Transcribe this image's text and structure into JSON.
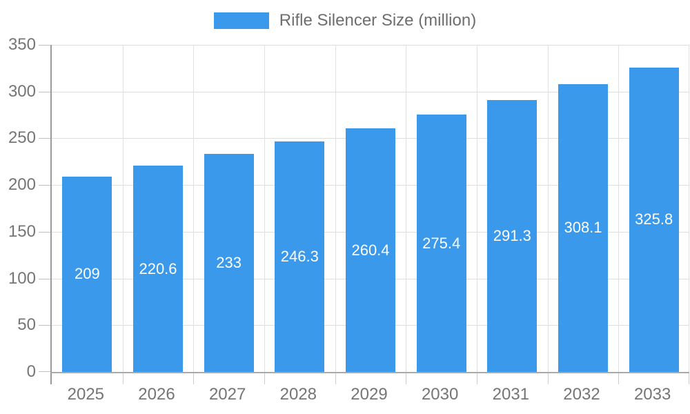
{
  "chart_data": {
    "type": "bar",
    "legend": "Rifle Silencer Size (million)",
    "categories": [
      "2025",
      "2026",
      "2027",
      "2028",
      "2029",
      "2030",
      "2031",
      "2032",
      "2033"
    ],
    "values": [
      209,
      220.6,
      233,
      246.3,
      260.4,
      275.4,
      291.3,
      308.1,
      325.8
    ],
    "value_labels": [
      "209",
      "220.6",
      "233",
      "246.3",
      "260.4",
      "275.4",
      "291.3",
      "308.1",
      "325.8"
    ],
    "title": "",
    "xlabel": "",
    "ylabel": "",
    "ylim": [
      0,
      350
    ],
    "ytick_step": 50,
    "ytick_labels": [
      "0",
      "50",
      "100",
      "150",
      "200",
      "250",
      "300",
      "350"
    ],
    "grid": true,
    "legend_position": "top-center",
    "colors": {
      "bar": "#3B99EC",
      "value_label": "#ffffff",
      "axis_label": "#757575",
      "legend_label": "#6e6e6e",
      "gridline": "#dddddd",
      "axis_line": "#9a9a9a",
      "background": "#ffffff"
    }
  }
}
